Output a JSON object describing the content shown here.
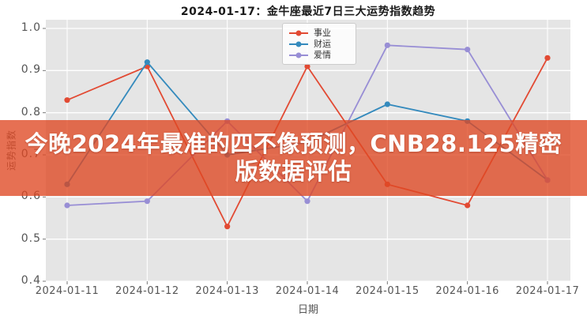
{
  "title": "2024-01-17：金牛座最近7日三大运势指数趋势",
  "banner": {
    "line1": "今晚2024年最准的四不像预测，CNB28.125精密",
    "line2": "版数据评估",
    "full_text": "今晚2024年最准的四不像预测，CNB28.125精密版数据评估",
    "bg_color": "#DF4822",
    "text_color": "#FFFFFF"
  },
  "chart_data": {
    "type": "line",
    "title": "2024-01-17：金牛座最近7日三大运势指数趋势",
    "xlabel": "日期",
    "ylabel": "运势指数",
    "categories": [
      "2024-01-11",
      "2024-01-12",
      "2024-01-13",
      "2024-01-14",
      "2024-01-15",
      "2024-01-16",
      "2024-01-17"
    ],
    "series": [
      {
        "id": "career",
        "name": "事业",
        "color": "#E24A33",
        "values": [
          0.83,
          0.91,
          0.53,
          0.91,
          0.63,
          0.58,
          0.93
        ]
      },
      {
        "id": "wealth",
        "name": "财运",
        "color": "#348ABD",
        "values": [
          0.63,
          0.92,
          0.7,
          0.73,
          0.82,
          0.78,
          0.64
        ]
      },
      {
        "id": "love",
        "name": "爱情",
        "color": "#988ED5",
        "values": [
          0.58,
          0.59,
          0.78,
          0.59,
          0.96,
          0.95,
          0.64
        ]
      }
    ],
    "ylim": [
      0.4,
      1.0
    ],
    "yticks": [
      "1.0",
      "0.9",
      "0.8",
      "0.7",
      "0.6",
      "0.5",
      "0.4"
    ],
    "ytick_values": [
      1.0,
      0.9,
      0.8,
      0.7,
      0.6,
      0.5,
      0.4
    ],
    "grid": true,
    "grid_color": "#FFFFFF",
    "plot_bg": "#E5E5E5",
    "legend_position": "top-center",
    "marker": "circle"
  }
}
